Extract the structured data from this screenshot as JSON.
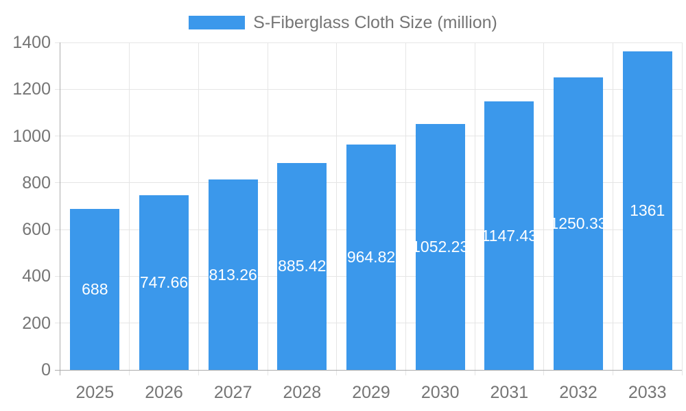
{
  "chart_data": {
    "type": "bar",
    "title": "S-Fiberglass Cloth Size (million)",
    "legend_position": "top",
    "categories": [
      "2025",
      "2026",
      "2027",
      "2028",
      "2029",
      "2030",
      "2031",
      "2032",
      "2033"
    ],
    "series": [
      {
        "name": "S-Fiberglass Cloth Size (million)",
        "values": [
          688,
          747.66,
          813.26,
          885.42,
          964.82,
          1052.23,
          1147.43,
          1250.33,
          1361
        ]
      }
    ],
    "value_labels": [
      "688",
      "747.66",
      "813.26",
      "885.42",
      "964.82",
      "1052.23",
      "1147.43",
      "1250.33",
      "1361"
    ],
    "xlabel": "",
    "ylabel": "",
    "ylim": [
      0,
      1400
    ],
    "yticks": [
      0,
      200,
      400,
      600,
      800,
      1000,
      1200,
      1400
    ],
    "grid": true,
    "colors": {
      "bar": "#3B98EB",
      "grid": "#E5E5E5",
      "axis": "#ABABAB",
      "tick_label": "#757575",
      "value_label": "#FFFFFF",
      "background": "#FFFFFF"
    }
  }
}
